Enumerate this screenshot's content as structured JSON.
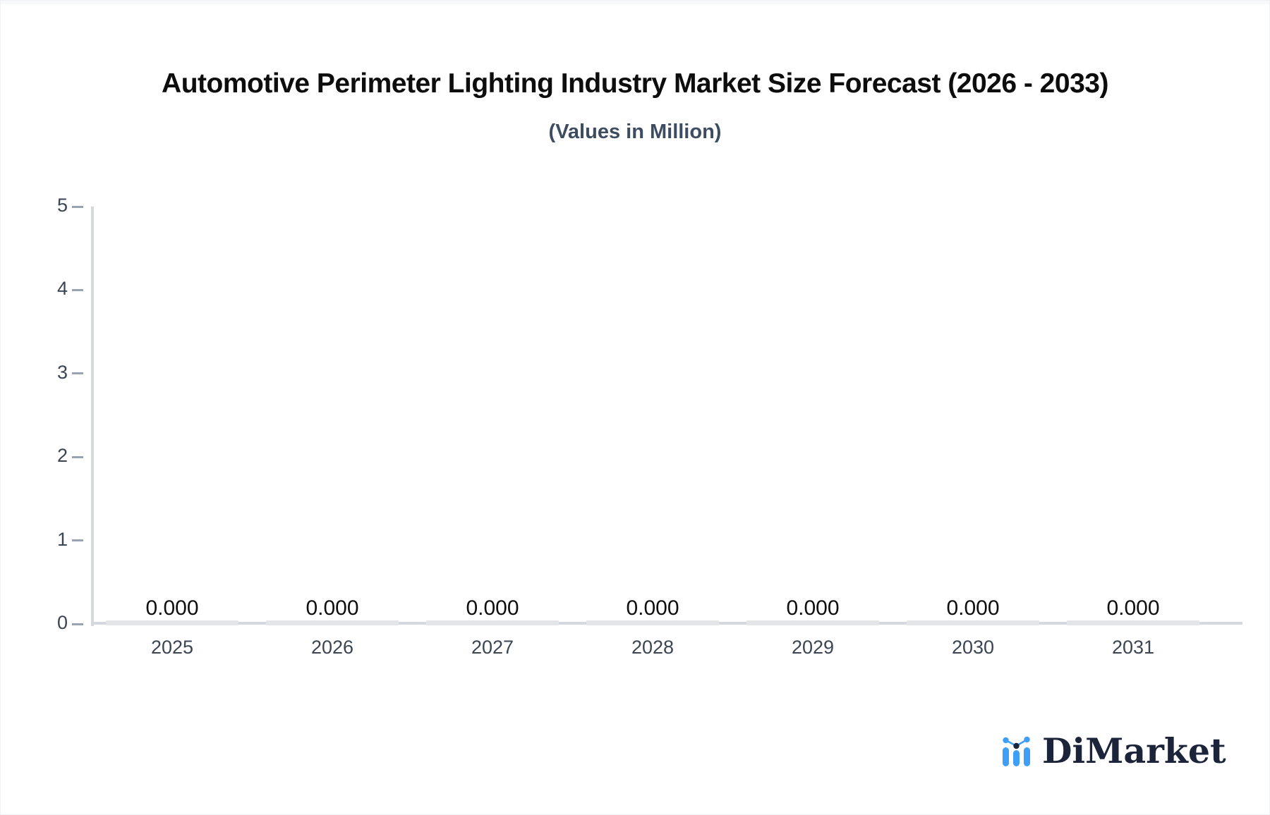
{
  "header": {
    "title": "Automotive Perimeter Lighting Industry Market Size Forecast (2026 - 2033)",
    "subtitle": "(Values in Million)"
  },
  "chart_data": {
    "type": "bar",
    "title": "Automotive Perimeter Lighting Industry Market Size Forecast (2026 - 2033)",
    "subtitle": "(Values in Million)",
    "categories": [
      "2025",
      "2026",
      "2027",
      "2028",
      "2029",
      "2030",
      "2031"
    ],
    "values": [
      0,
      0,
      0,
      0,
      0,
      0,
      0
    ],
    "value_labels": [
      "0.000",
      "0.000",
      "0.000",
      "0.000",
      "0.000",
      "0.000",
      "0.000"
    ],
    "ylabel": "",
    "xlabel": "",
    "ylim": [
      0,
      5
    ],
    "yticks": [
      0,
      1,
      2,
      3,
      4,
      5
    ],
    "grid": false,
    "legend": "none",
    "colors": {
      "bar": "#e3e5e9",
      "axis_line": "#d5d8de",
      "tick_mark": "#9aa3b2",
      "axis_label": "#3b4554",
      "value_label": "#0f0f0f",
      "subtitle": "#3e4c62"
    }
  },
  "logo": {
    "text": "DiMarket",
    "icon": "bar-line-chart-icon",
    "blue": "#3f9ff7",
    "navy": "#1b2438"
  }
}
